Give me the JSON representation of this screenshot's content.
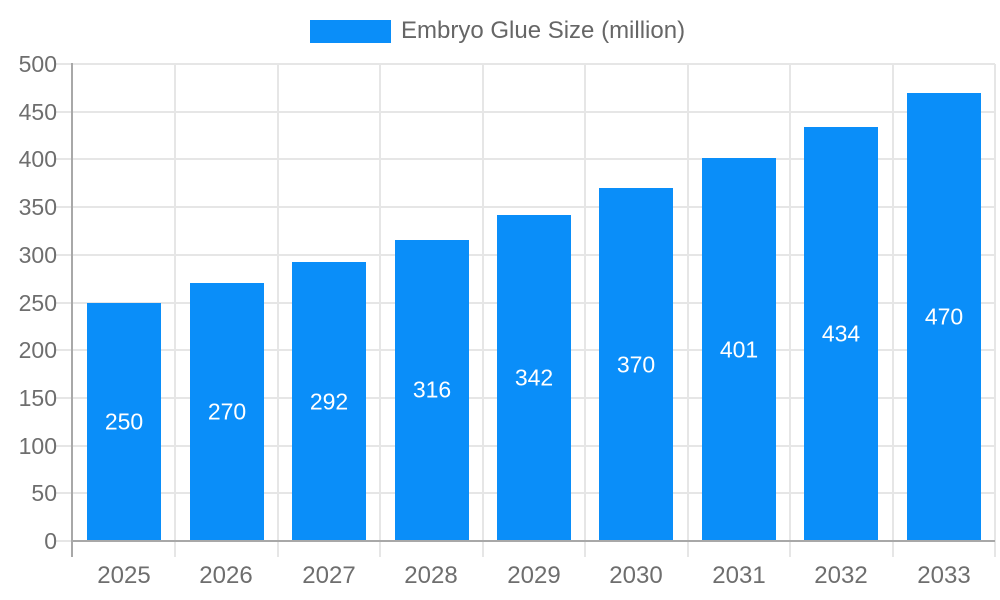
{
  "legend": {
    "label": "Embryo Glue Size (million)"
  },
  "chart_data": {
    "type": "bar",
    "title": "Embryo Glue Size (million)",
    "categories": [
      "2025",
      "2026",
      "2027",
      "2028",
      "2029",
      "2030",
      "2031",
      "2032",
      "2033"
    ],
    "values": [
      250,
      270,
      292,
      316,
      342,
      370,
      401,
      434,
      470
    ],
    "xlabel": "",
    "ylabel": "",
    "ylim": [
      0,
      500
    ],
    "yticks": [
      0,
      50,
      100,
      150,
      200,
      250,
      300,
      350,
      400,
      450,
      500
    ],
    "grid": true,
    "legend_position": "top-center",
    "bar_color": "#0a8ef9",
    "value_label_color": "#ffffff",
    "grid_color": "#e6e6e6",
    "axis_color": "#a8a8a8",
    "tick_label_color": "#6e6e6e",
    "legend_text_color": "#666666",
    "background_color": "#ffffff"
  }
}
